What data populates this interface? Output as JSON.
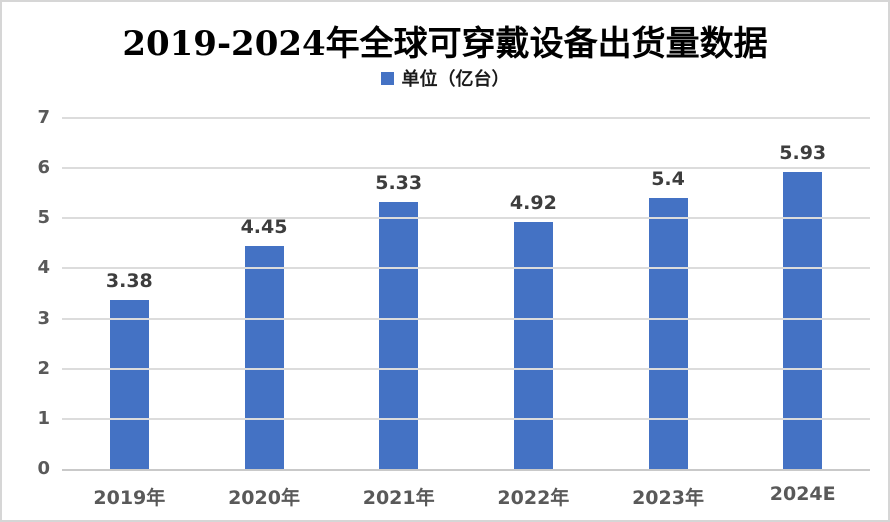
{
  "chart_data": {
    "type": "bar",
    "title": "2019-2024年全球可穿戴设备出货量数据",
    "legend": "单位（亿台）",
    "legend_position": "top",
    "categories": [
      "2019年",
      "2020年",
      "2021年",
      "2022年",
      "2023年",
      "2024E"
    ],
    "values": [
      3.38,
      4.45,
      5.33,
      4.92,
      5.4,
      5.93
    ],
    "value_labels": [
      "3.38",
      "4.45",
      "5.33",
      "4.92",
      "5.4",
      "5.93"
    ],
    "xlabel": "",
    "ylabel": "",
    "ylim": [
      0,
      7
    ],
    "yticks": [
      0,
      1,
      2,
      3,
      4,
      5,
      6,
      7
    ],
    "grid": "horizontal"
  },
  "colors": {
    "bar": "#4472C4",
    "legend_swatch": "#4472C4",
    "gridline": "#dcdcdc",
    "axis_line": "#c9c9c9",
    "tick_label": "#595959",
    "value_label": "#3d3d3d",
    "title": "#000000",
    "border": "#d6d6d6"
  }
}
